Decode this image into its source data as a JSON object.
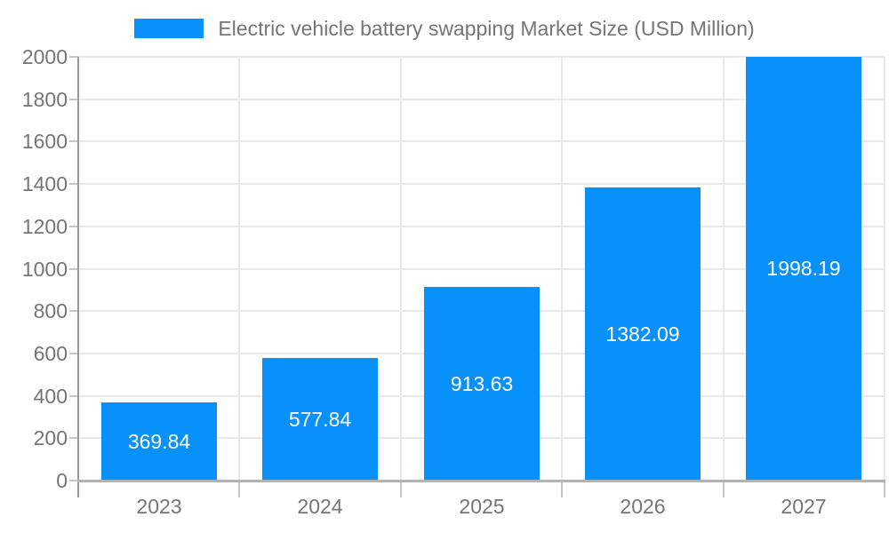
{
  "legend": {
    "label": "Electric vehicle battery swapping Market Size (USD Million)"
  },
  "chart_data": {
    "type": "bar",
    "title": "Electric vehicle battery swapping Market Size (USD Million)",
    "series_name": "Electric vehicle battery swapping Market Size (USD Million)",
    "categories": [
      "2023",
      "2024",
      "2025",
      "2026",
      "2027"
    ],
    "values": [
      369.84,
      577.84,
      913.63,
      1382.09,
      1998.19
    ],
    "xlabel": "",
    "ylabel": "",
    "ylim": [
      0,
      2000
    ],
    "yticks": [
      0,
      200,
      400,
      600,
      800,
      1000,
      1200,
      1400,
      1600,
      1800,
      2000
    ],
    "grid": true,
    "legend_position": "top",
    "bar_color": "#0991fb",
    "value_label_color": "#ffffff",
    "axis_label_color": "#757575"
  }
}
